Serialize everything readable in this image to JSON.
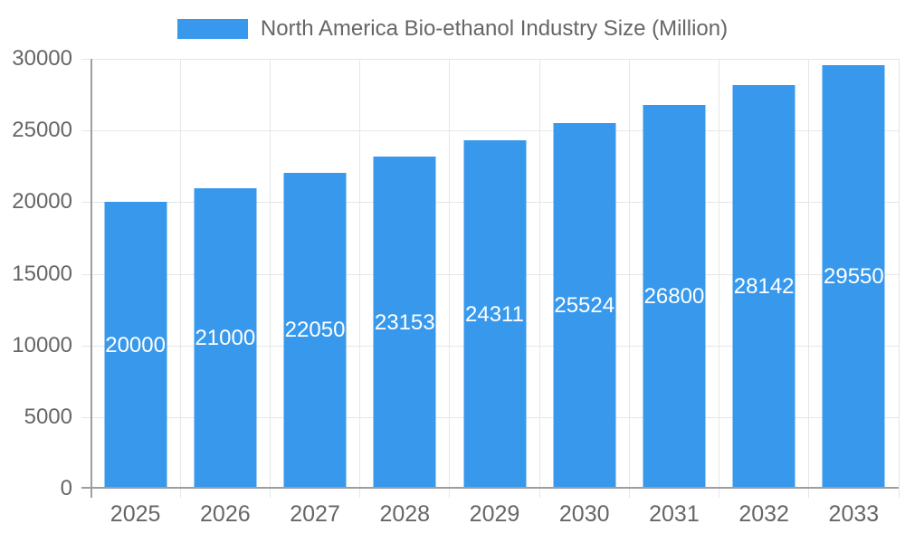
{
  "chart_data": {
    "type": "bar",
    "legend_label": "North America Bio-ethanol Industry Size (Million)",
    "legend_position": "top",
    "categories": [
      "2025",
      "2026",
      "2027",
      "2028",
      "2029",
      "2030",
      "2031",
      "2032",
      "2033"
    ],
    "values": [
      20000,
      21000,
      22050,
      23153,
      24311,
      25524,
      26800,
      28142,
      29550
    ],
    "bar_value_labels": [
      "20000",
      "21000",
      "22050",
      "23153",
      "24311",
      "25524",
      "26800",
      "28142",
      "29550"
    ],
    "xlabel": "",
    "ylabel": "",
    "ylim": [
      0,
      30000
    ],
    "yticks": [
      0,
      5000,
      10000,
      15000,
      20000,
      25000,
      30000
    ],
    "grid": true,
    "colors": {
      "bar": "#3899ec",
      "gridline": "#e6e6e6",
      "axis_line": "#9e9e9e",
      "tick_label": "#666666",
      "bar_label": "#ffffff",
      "background": "#ffffff"
    }
  }
}
